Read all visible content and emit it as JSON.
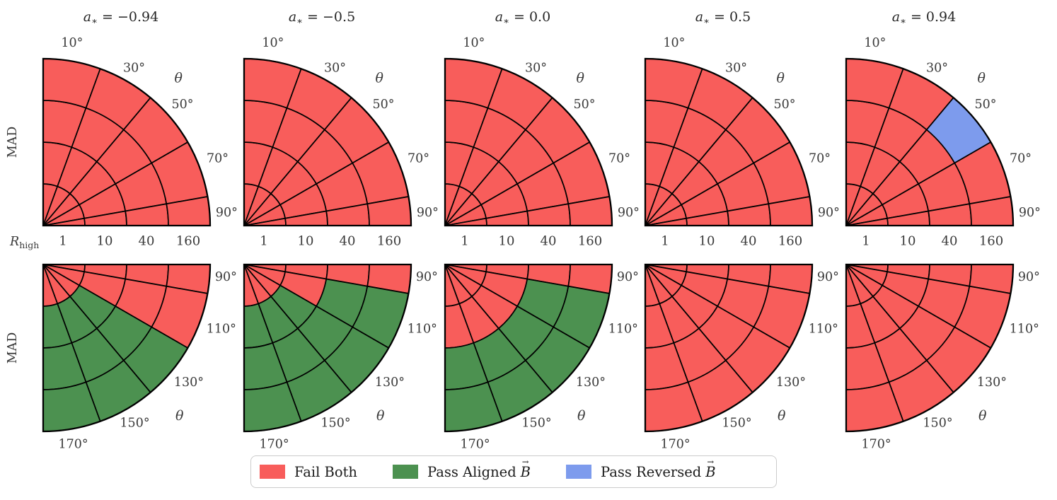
{
  "figure": {
    "background": "#ffffff"
  },
  "chart_data": {
    "type": "heatmap",
    "layout": {
      "rows": 2,
      "cols": 5,
      "projection": "polar-wedge",
      "top_row_theta_range_deg": [
        0,
        90
      ],
      "bottom_row_theta_range_deg": [
        90,
        180
      ],
      "grid": "on",
      "legend_position": "bottom-center"
    },
    "row_label": "MAD",
    "r_axis": {
      "label_var": "R",
      "label_sub": "high",
      "tick_labels": [
        "1",
        "10",
        "40",
        "160"
      ]
    },
    "theta_axis": {
      "symbol": "θ",
      "top": {
        "edges_deg": [
          0,
          20,
          40,
          60,
          80,
          90
        ],
        "tick_labels": [
          "10°",
          "30°",
          "50°",
          "70°",
          "90°"
        ]
      },
      "bottom": {
        "edges_deg": [
          90,
          100,
          120,
          140,
          160,
          180
        ],
        "tick_labels": [
          "90°",
          "110°",
          "130°",
          "150°",
          "170°"
        ]
      }
    },
    "status_colors": {
      "F": "#f85d5b",
      "A": "#4c9150",
      "R": "#7d9bed"
    },
    "status_meaning": {
      "F": "Fail Both",
      "A": "Pass Aligned B",
      "R": "Pass Reversed B"
    },
    "columns": [
      {
        "spin": "−0.94",
        "title": {
          "var": "a",
          "sub": "∗",
          "eq": "= −0.94"
        },
        "top": [
          [
            "F",
            "F",
            "F",
            "F"
          ],
          [
            "F",
            "F",
            "F",
            "F"
          ],
          [
            "F",
            "F",
            "F",
            "F"
          ],
          [
            "F",
            "F",
            "F",
            "F"
          ],
          [
            "F",
            "F",
            "F",
            "F"
          ]
        ],
        "bottom": [
          [
            "F",
            "F",
            "F",
            "F"
          ],
          [
            "F",
            "F",
            "F",
            "F"
          ],
          [
            "F",
            "A",
            "A",
            "A"
          ],
          [
            "F",
            "A",
            "A",
            "A"
          ],
          [
            "F",
            "A",
            "A",
            "A"
          ]
        ]
      },
      {
        "spin": "−0.5",
        "title": {
          "var": "a",
          "sub": "∗",
          "eq": "= −0.5"
        },
        "top": [
          [
            "F",
            "F",
            "F",
            "F"
          ],
          [
            "F",
            "F",
            "F",
            "F"
          ],
          [
            "F",
            "F",
            "F",
            "F"
          ],
          [
            "F",
            "F",
            "F",
            "F"
          ],
          [
            "F",
            "F",
            "F",
            "F"
          ]
        ],
        "bottom": [
          [
            "F",
            "F",
            "F",
            "F"
          ],
          [
            "F",
            "F",
            "A",
            "A"
          ],
          [
            "F",
            "A",
            "A",
            "A"
          ],
          [
            "F",
            "A",
            "A",
            "A"
          ],
          [
            "F",
            "A",
            "A",
            "A"
          ]
        ]
      },
      {
        "spin": "0.0",
        "title": {
          "var": "a",
          "sub": "∗",
          "eq": "= 0.0"
        },
        "top": [
          [
            "F",
            "F",
            "F",
            "F"
          ],
          [
            "F",
            "F",
            "F",
            "F"
          ],
          [
            "F",
            "F",
            "F",
            "F"
          ],
          [
            "F",
            "F",
            "F",
            "F"
          ],
          [
            "F",
            "F",
            "F",
            "F"
          ]
        ],
        "bottom": [
          [
            "F",
            "F",
            "F",
            "F"
          ],
          [
            "F",
            "F",
            "A",
            "A"
          ],
          [
            "F",
            "F",
            "A",
            "A"
          ],
          [
            "F",
            "F",
            "A",
            "A"
          ],
          [
            "F",
            "F",
            "A",
            "A"
          ]
        ]
      },
      {
        "spin": "0.5",
        "title": {
          "var": "a",
          "sub": "∗",
          "eq": "= 0.5"
        },
        "top": [
          [
            "F",
            "F",
            "F",
            "F"
          ],
          [
            "F",
            "F",
            "F",
            "F"
          ],
          [
            "F",
            "F",
            "F",
            "F"
          ],
          [
            "F",
            "F",
            "F",
            "F"
          ],
          [
            "F",
            "F",
            "F",
            "F"
          ]
        ],
        "bottom": [
          [
            "F",
            "F",
            "F",
            "F"
          ],
          [
            "F",
            "F",
            "F",
            "F"
          ],
          [
            "F",
            "F",
            "F",
            "F"
          ],
          [
            "F",
            "F",
            "F",
            "F"
          ],
          [
            "F",
            "F",
            "F",
            "F"
          ]
        ]
      },
      {
        "spin": "0.94",
        "title": {
          "var": "a",
          "sub": "∗",
          "eq": "= 0.94"
        },
        "top": [
          [
            "F",
            "F",
            "F",
            "F"
          ],
          [
            "F",
            "F",
            "F",
            "F"
          ],
          [
            "F",
            "F",
            "F",
            "R"
          ],
          [
            "F",
            "F",
            "F",
            "F"
          ],
          [
            "F",
            "F",
            "F",
            "F"
          ]
        ],
        "bottom": [
          [
            "F",
            "F",
            "F",
            "F"
          ],
          [
            "F",
            "F",
            "F",
            "F"
          ],
          [
            "F",
            "F",
            "F",
            "F"
          ],
          [
            "F",
            "F",
            "F",
            "F"
          ],
          [
            "F",
            "F",
            "F",
            "F"
          ]
        ]
      }
    ]
  },
  "legend": {
    "items": [
      {
        "label": "Fail Both",
        "vec": "",
        "color": "#f85d5b"
      },
      {
        "label": "Pass Aligned",
        "vec": "B",
        "color": "#4c9150"
      },
      {
        "label": "Pass Reversed",
        "vec": "B",
        "color": "#7d9bed"
      }
    ]
  }
}
